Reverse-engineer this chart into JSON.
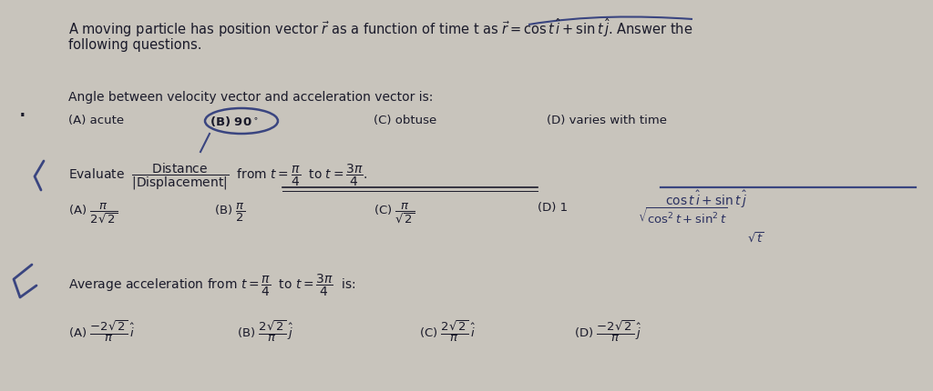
{
  "bg_color": "#c8c4bc",
  "text_color": "#1a1a2a",
  "ink_color": "#2a3060",
  "fs_title": 10.5,
  "fs_body": 10.0,
  "fs_opt": 9.5,
  "title_line1": "A moving particle has position vector $\\vec{r}$ as a function of time t as $\\vec{r} = \\cos t\\,\\hat{i} + \\sin t\\,\\hat{j}$. Answer the",
  "title_line2": "following questions.",
  "q1_bullet": ".",
  "q1_text": "Angle between velocity vector and acceleration vector is:",
  "q1A": "(A) acute",
  "q1B": "(B) 90$^\\circ$",
  "q1C": "(C) obtuse",
  "q1D": "(D) varies with time",
  "q2_text": "Evaluate  $\\dfrac{\\mathrm{Distance}}{|\\mathrm{Displacement}|}$  from $t = \\dfrac{\\pi}{4}$  to $t = \\dfrac{3\\pi}{4}$.",
  "q2A": "(A) $\\dfrac{\\pi}{2\\sqrt{2}}$",
  "q2B": "(B) $\\dfrac{\\pi}{2}$",
  "q2C": "(C) $\\dfrac{\\pi}{\\sqrt{2}}$",
  "q2D": "(D) 1",
  "q3_text": "Average acceleration from $t = \\dfrac{\\pi}{4}$  to $t = \\dfrac{3\\pi}{4}$  is:",
  "q3A": "(A) $\\dfrac{-2\\sqrt{2}}{\\pi}\\,\\hat{i}$",
  "q3B": "(B) $\\dfrac{2\\sqrt{2}}{\\pi}\\,\\hat{j}$",
  "q3C": "(C) $\\dfrac{2\\sqrt{2}}{\\pi}\\,\\hat{i}$",
  "q3D": "(D) $\\dfrac{-2\\sqrt{2}}{\\pi}\\,\\hat{j}$",
  "hw_line1": "$\\cos t\\,\\hat{i} + \\sin t\\,\\hat{j}$",
  "hw_line2": "$\\sqrt{\\cos^2 t + \\sin^2 t}$",
  "hw_line3": "$\\sqrt{t}$",
  "curve_color": "#3a4580"
}
